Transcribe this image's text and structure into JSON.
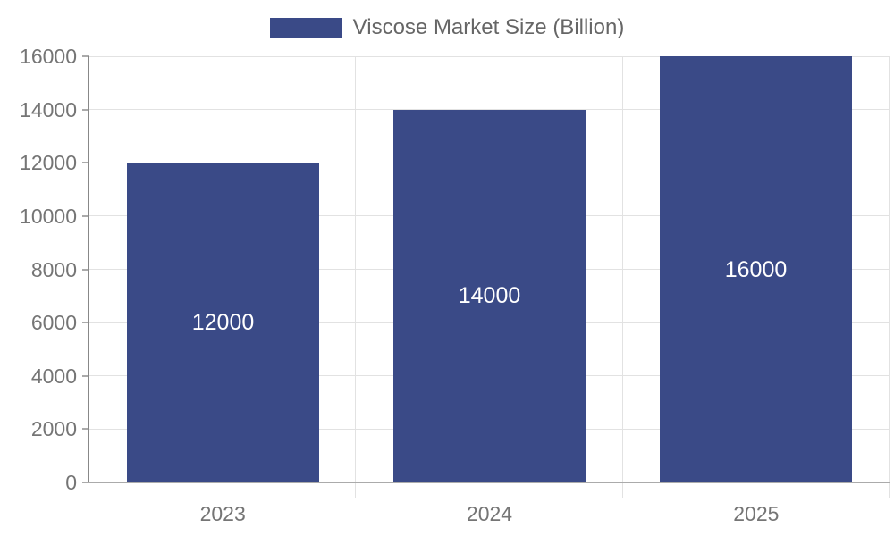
{
  "chart_data": {
    "type": "bar",
    "title": "Viscose Market Size (Billion)",
    "categories": [
      "2023",
      "2024",
      "2025"
    ],
    "series": [
      {
        "name": "Viscose Market Size (Billion)",
        "values": [
          12000,
          14000,
          16000
        ]
      }
    ],
    "data_labels": [
      "12000",
      "14000",
      "16000"
    ],
    "xlabel": "",
    "ylabel": "",
    "ylim": [
      0,
      16000
    ],
    "yticks": [
      0,
      2000,
      4000,
      6000,
      8000,
      10000,
      12000,
      14000,
      16000
    ],
    "grid": "on",
    "legend_position": "top-center"
  },
  "colors": {
    "bar": "#3A4A87",
    "value_label": "#FFFFFF",
    "legend_text": "#666666",
    "axis_label": "#757575",
    "grid_line": "#E2E2E2",
    "y_axis_line": "#888888",
    "x_axis_line": "#ABABAB",
    "tick": "#AAAAAA"
  }
}
